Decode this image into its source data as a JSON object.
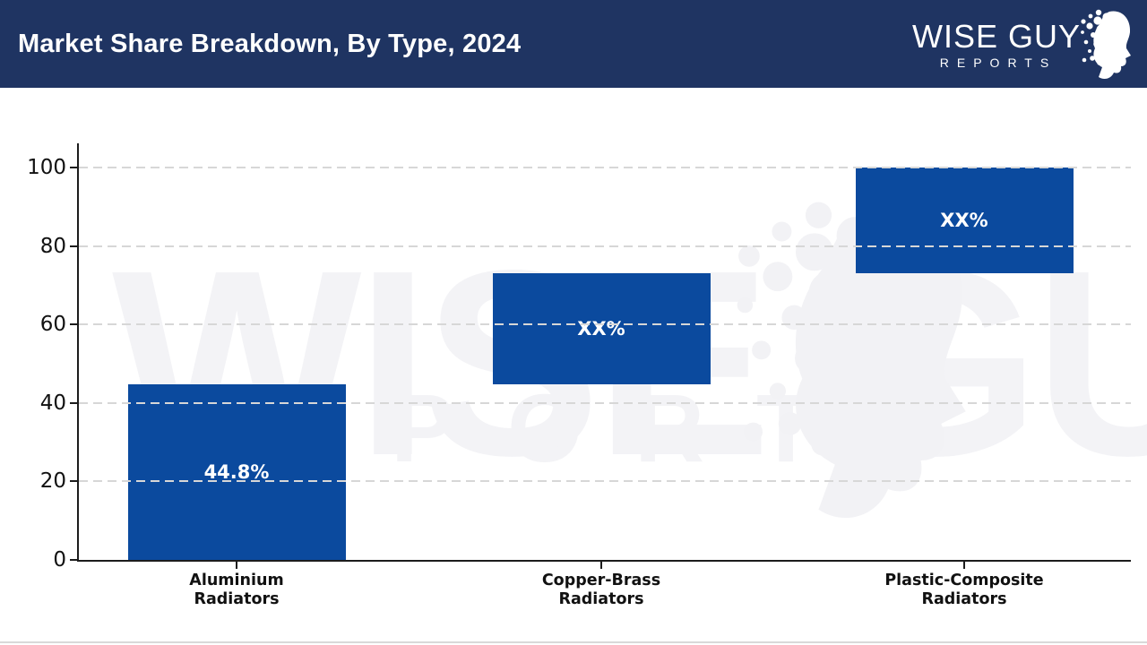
{
  "header": {
    "title": "Market Share Breakdown, By Type, 2024",
    "logo_line1": "WISE GUY",
    "logo_line2": "REPORTS"
  },
  "watermark": {
    "line1": "WISE GUY",
    "line2": "REPORTS"
  },
  "colors": {
    "header_bg": "#1f3462",
    "bar": "#0b4a9e",
    "grid": "#d7d7d7",
    "axis": "#1c1c1c",
    "watermark": "#f3f3f6"
  },
  "chart_data": {
    "type": "bar",
    "subtype": "floating-segment-waterfall",
    "title": "Market Share Breakdown, By Type, 2024",
    "categories": [
      "Aluminium Radiators",
      "Copper-Brass Radiators",
      "Plastic-Composite Radiators"
    ],
    "category_lines": [
      [
        "Aluminium",
        "Radiators"
      ],
      [
        "Copper-Brass",
        "Radiators"
      ],
      [
        "Plastic-Composite",
        "Radiators"
      ]
    ],
    "bars": [
      {
        "category": "Aluminium Radiators",
        "start": 0,
        "end": 44.8,
        "value_label": "44.8%"
      },
      {
        "category": "Copper-Brass Radiators",
        "start": 44.8,
        "end": 73.0,
        "value_label": "XX%"
      },
      {
        "category": "Plastic-Composite Radiators",
        "start": 73.0,
        "end": 100.0,
        "value_label": "XX%"
      }
    ],
    "y_ticks": [
      0,
      20,
      40,
      60,
      80,
      100
    ],
    "ylim": [
      0,
      106
    ],
    "xlabel": "",
    "ylabel": "",
    "grid": true,
    "grid_style": "dashed",
    "legend": false,
    "bar_color": "#0b4a9e"
  }
}
